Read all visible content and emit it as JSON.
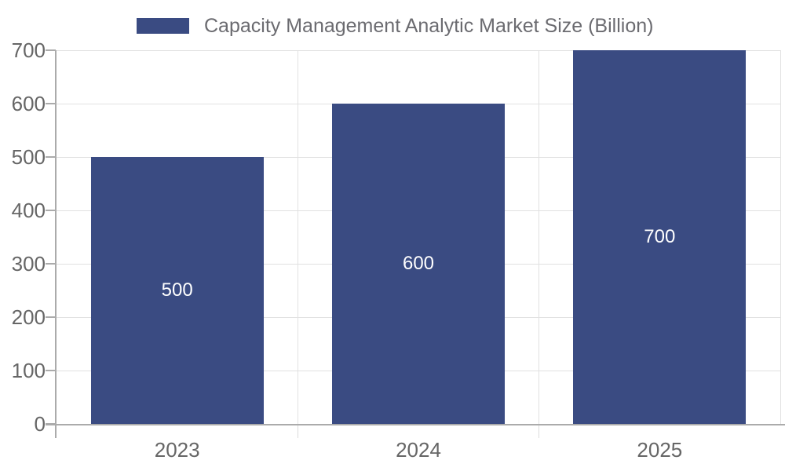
{
  "legend": {
    "label": "Capacity Management Analytic Market Size (Billion)"
  },
  "chart_data": {
    "type": "bar",
    "title": "Capacity Management Analytic Market Size (Billion)",
    "categories": [
      "2023",
      "2024",
      "2025"
    ],
    "series": [
      {
        "name": "Capacity Management Analytic Market Size (Billion)",
        "values": [
          500,
          600,
          700
        ]
      }
    ],
    "bar_labels": [
      "500",
      "600",
      "700"
    ],
    "xlabel": "",
    "ylabel": "",
    "ylim": [
      0,
      700
    ],
    "yticks": [
      0,
      100,
      200,
      300,
      400,
      500,
      600,
      700
    ],
    "grid": true,
    "legend_position": "top-center",
    "colors": {
      "bar": "#3A4B82",
      "grid": "#E1E1E1",
      "axis": "#ABABAB",
      "minor_tick": "#DCDCDC",
      "tick_text": "#666666",
      "title_text": "#6B6B70",
      "bar_label_text": "#FFFFFF",
      "background": "#FFFFFF"
    }
  }
}
